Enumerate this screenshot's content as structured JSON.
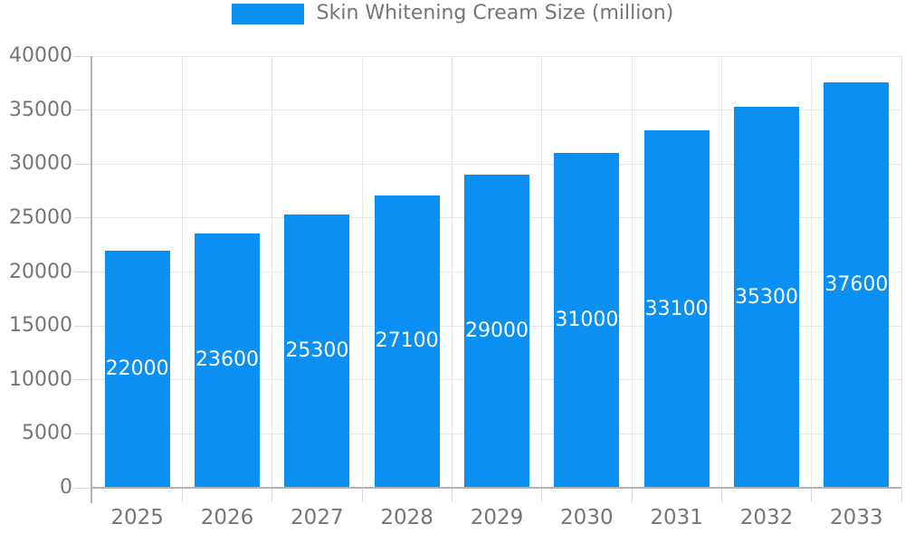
{
  "chart_data": {
    "type": "bar",
    "title": "",
    "legend_label": "Skin Whitening Cream Size (million)",
    "legend_position": "top-center",
    "categories": [
      "2025",
      "2026",
      "2027",
      "2028",
      "2029",
      "2030",
      "2031",
      "2032",
      "2033"
    ],
    "series": [
      {
        "name": "Skin Whitening Cream Size (million)",
        "values": [
          22000,
          23600,
          25300,
          27100,
          29000,
          31000,
          33100,
          35300,
          37600
        ]
      }
    ],
    "bar_value_labels": [
      "22000",
      "23600",
      "25300",
      "27100",
      "29000",
      "31000",
      "33100",
      "35300",
      "37600"
    ],
    "xlabel": "",
    "ylabel": "",
    "ylim": [
      0,
      40000
    ],
    "ytick_step": 5000,
    "ytick_labels": [
      "0",
      "5000",
      "10000",
      "15000",
      "20000",
      "25000",
      "30000",
      "35000",
      "40000"
    ],
    "grid": true,
    "bar_labels_inside": true,
    "colors": {
      "bar": "#0a8ff2",
      "bar_label": "#ffffff",
      "axis_text": "#757575",
      "grid": "#e6e6e6",
      "axis_line": "#b3b3b3",
      "tick": "#d9d9d9",
      "background": "#ffffff"
    }
  }
}
